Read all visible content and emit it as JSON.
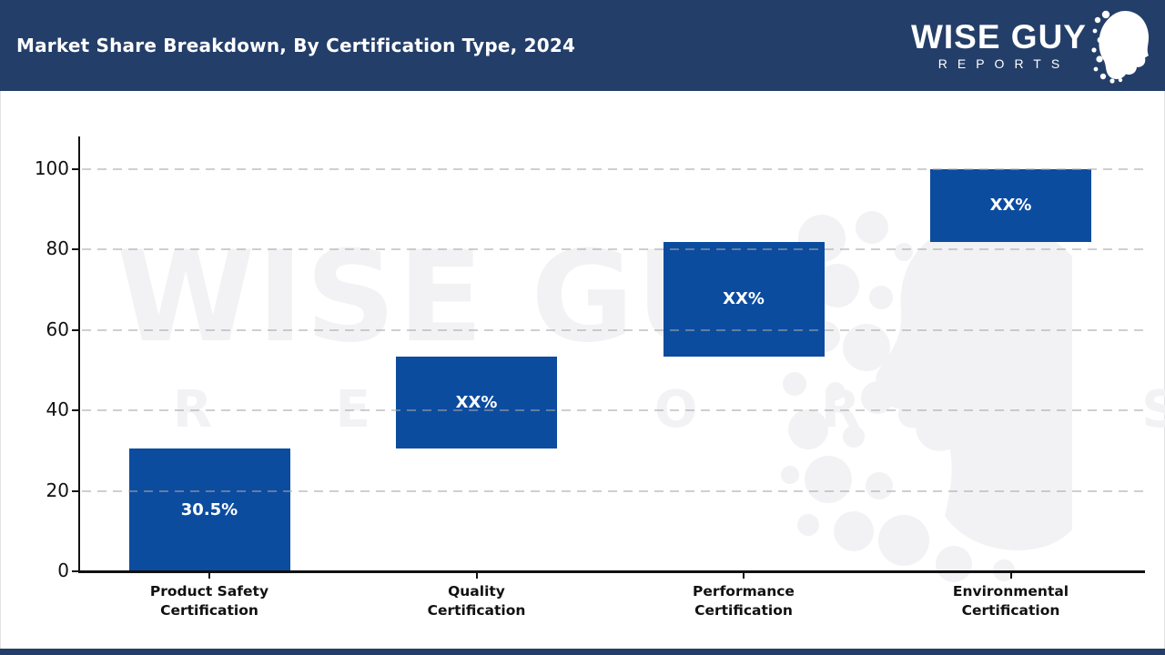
{
  "header": {
    "title": "Market Share Breakdown, By Certification Type, 2024",
    "logo_line1": "WISE GUY",
    "logo_line2": "REPORTS"
  },
  "watermark": {
    "line1": "WISE GUY",
    "line2": "R E P O R T S"
  },
  "colors": {
    "header_bg": "#233e69",
    "footer_bg": "#233e69",
    "bar": "#0c4c9f",
    "bar_label": "#ffffff",
    "axis": "#111111",
    "gridline": "#bdbdbd",
    "watermark": "#f2f2f4"
  },
  "chart_data": {
    "type": "bar",
    "subtype": "floating-waterfall",
    "title": "Market Share Breakdown, By Certification Type, 2024",
    "xlabel": "",
    "ylabel": "",
    "categories": [
      "Product Safety\nCertification",
      "Quality\nCertification",
      "Performance\nCertification",
      "Environmental\nCertification"
    ],
    "segments": [
      {
        "category": "Product Safety Certification",
        "start": 0,
        "end": 30.5,
        "label": "30.5%"
      },
      {
        "category": "Quality Certification",
        "start": 30.5,
        "end": 53.5,
        "label": "XX%"
      },
      {
        "category": "Performance Certification",
        "start": 53.5,
        "end": 82,
        "label": "XX%"
      },
      {
        "category": "Environmental Certification",
        "start": 82,
        "end": 100,
        "label": "XX%"
      }
    ],
    "yticks": [
      0,
      20,
      40,
      60,
      80,
      100
    ],
    "ylim": [
      0,
      108
    ],
    "grid": {
      "axis": "y",
      "style": "dashed",
      "drawn_over_bars": true
    },
    "legend": false
  }
}
